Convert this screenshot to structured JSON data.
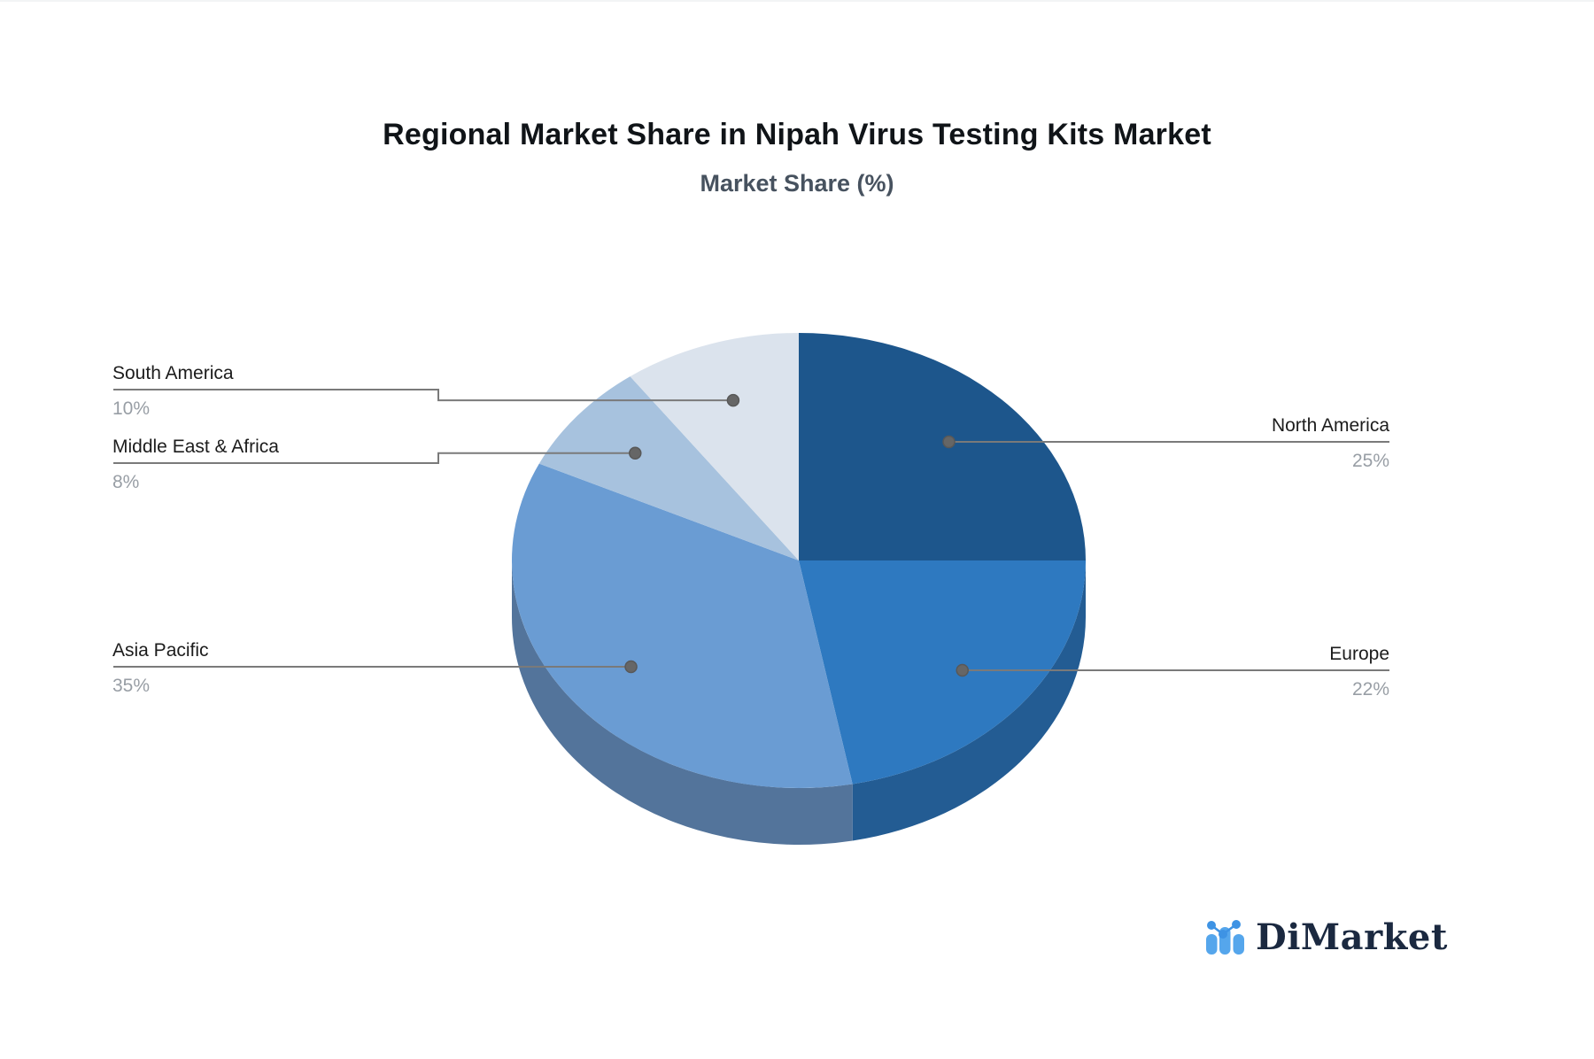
{
  "header": {
    "title": "Regional Market Share in Nipah Virus Testing Kits Market",
    "subtitle": "Market Share (%)"
  },
  "chart_data": {
    "type": "pie",
    "title": "Regional Market Share in Nipah Virus Testing Kits Market",
    "subtitle": "Market Share (%)",
    "unit": "%",
    "direction": "clockwise",
    "start_angle_deg": 0,
    "pseudo_3d": true,
    "legend_position": "none",
    "label_style": "callout-lines-with-dots",
    "slices": [
      {
        "label": "North America",
        "value": 25,
        "display": "25%",
        "color": "#1D568C",
        "side_color": "#16436B",
        "callout_side": "right"
      },
      {
        "label": "Europe",
        "value": 22,
        "display": "22%",
        "color": "#2E79C0",
        "side_color": "#235C93",
        "callout_side": "right"
      },
      {
        "label": "Asia Pacific",
        "value": 35,
        "display": "35%",
        "color": "#6A9CD3",
        "side_color": "#53749B",
        "callout_side": "left"
      },
      {
        "label": "Middle East & Africa",
        "value": 8,
        "display": "8%",
        "color": "#A7C2DE",
        "side_color": "#8AA6C2",
        "callout_side": "left"
      },
      {
        "label": "South America",
        "value": 10,
        "display": "10%",
        "color": "#DBE3ED",
        "side_color": "#B8C4D3",
        "callout_side": "left"
      }
    ],
    "callout_line_color": "#7A7A7A",
    "callout_dot_color": "#666666"
  },
  "branding": {
    "logo_text": "DiMarket",
    "logo_icon": "bar-chart-sparkline-icon",
    "logo_text_color": "#1B2940",
    "logo_accent_color": "#55A6EC"
  }
}
